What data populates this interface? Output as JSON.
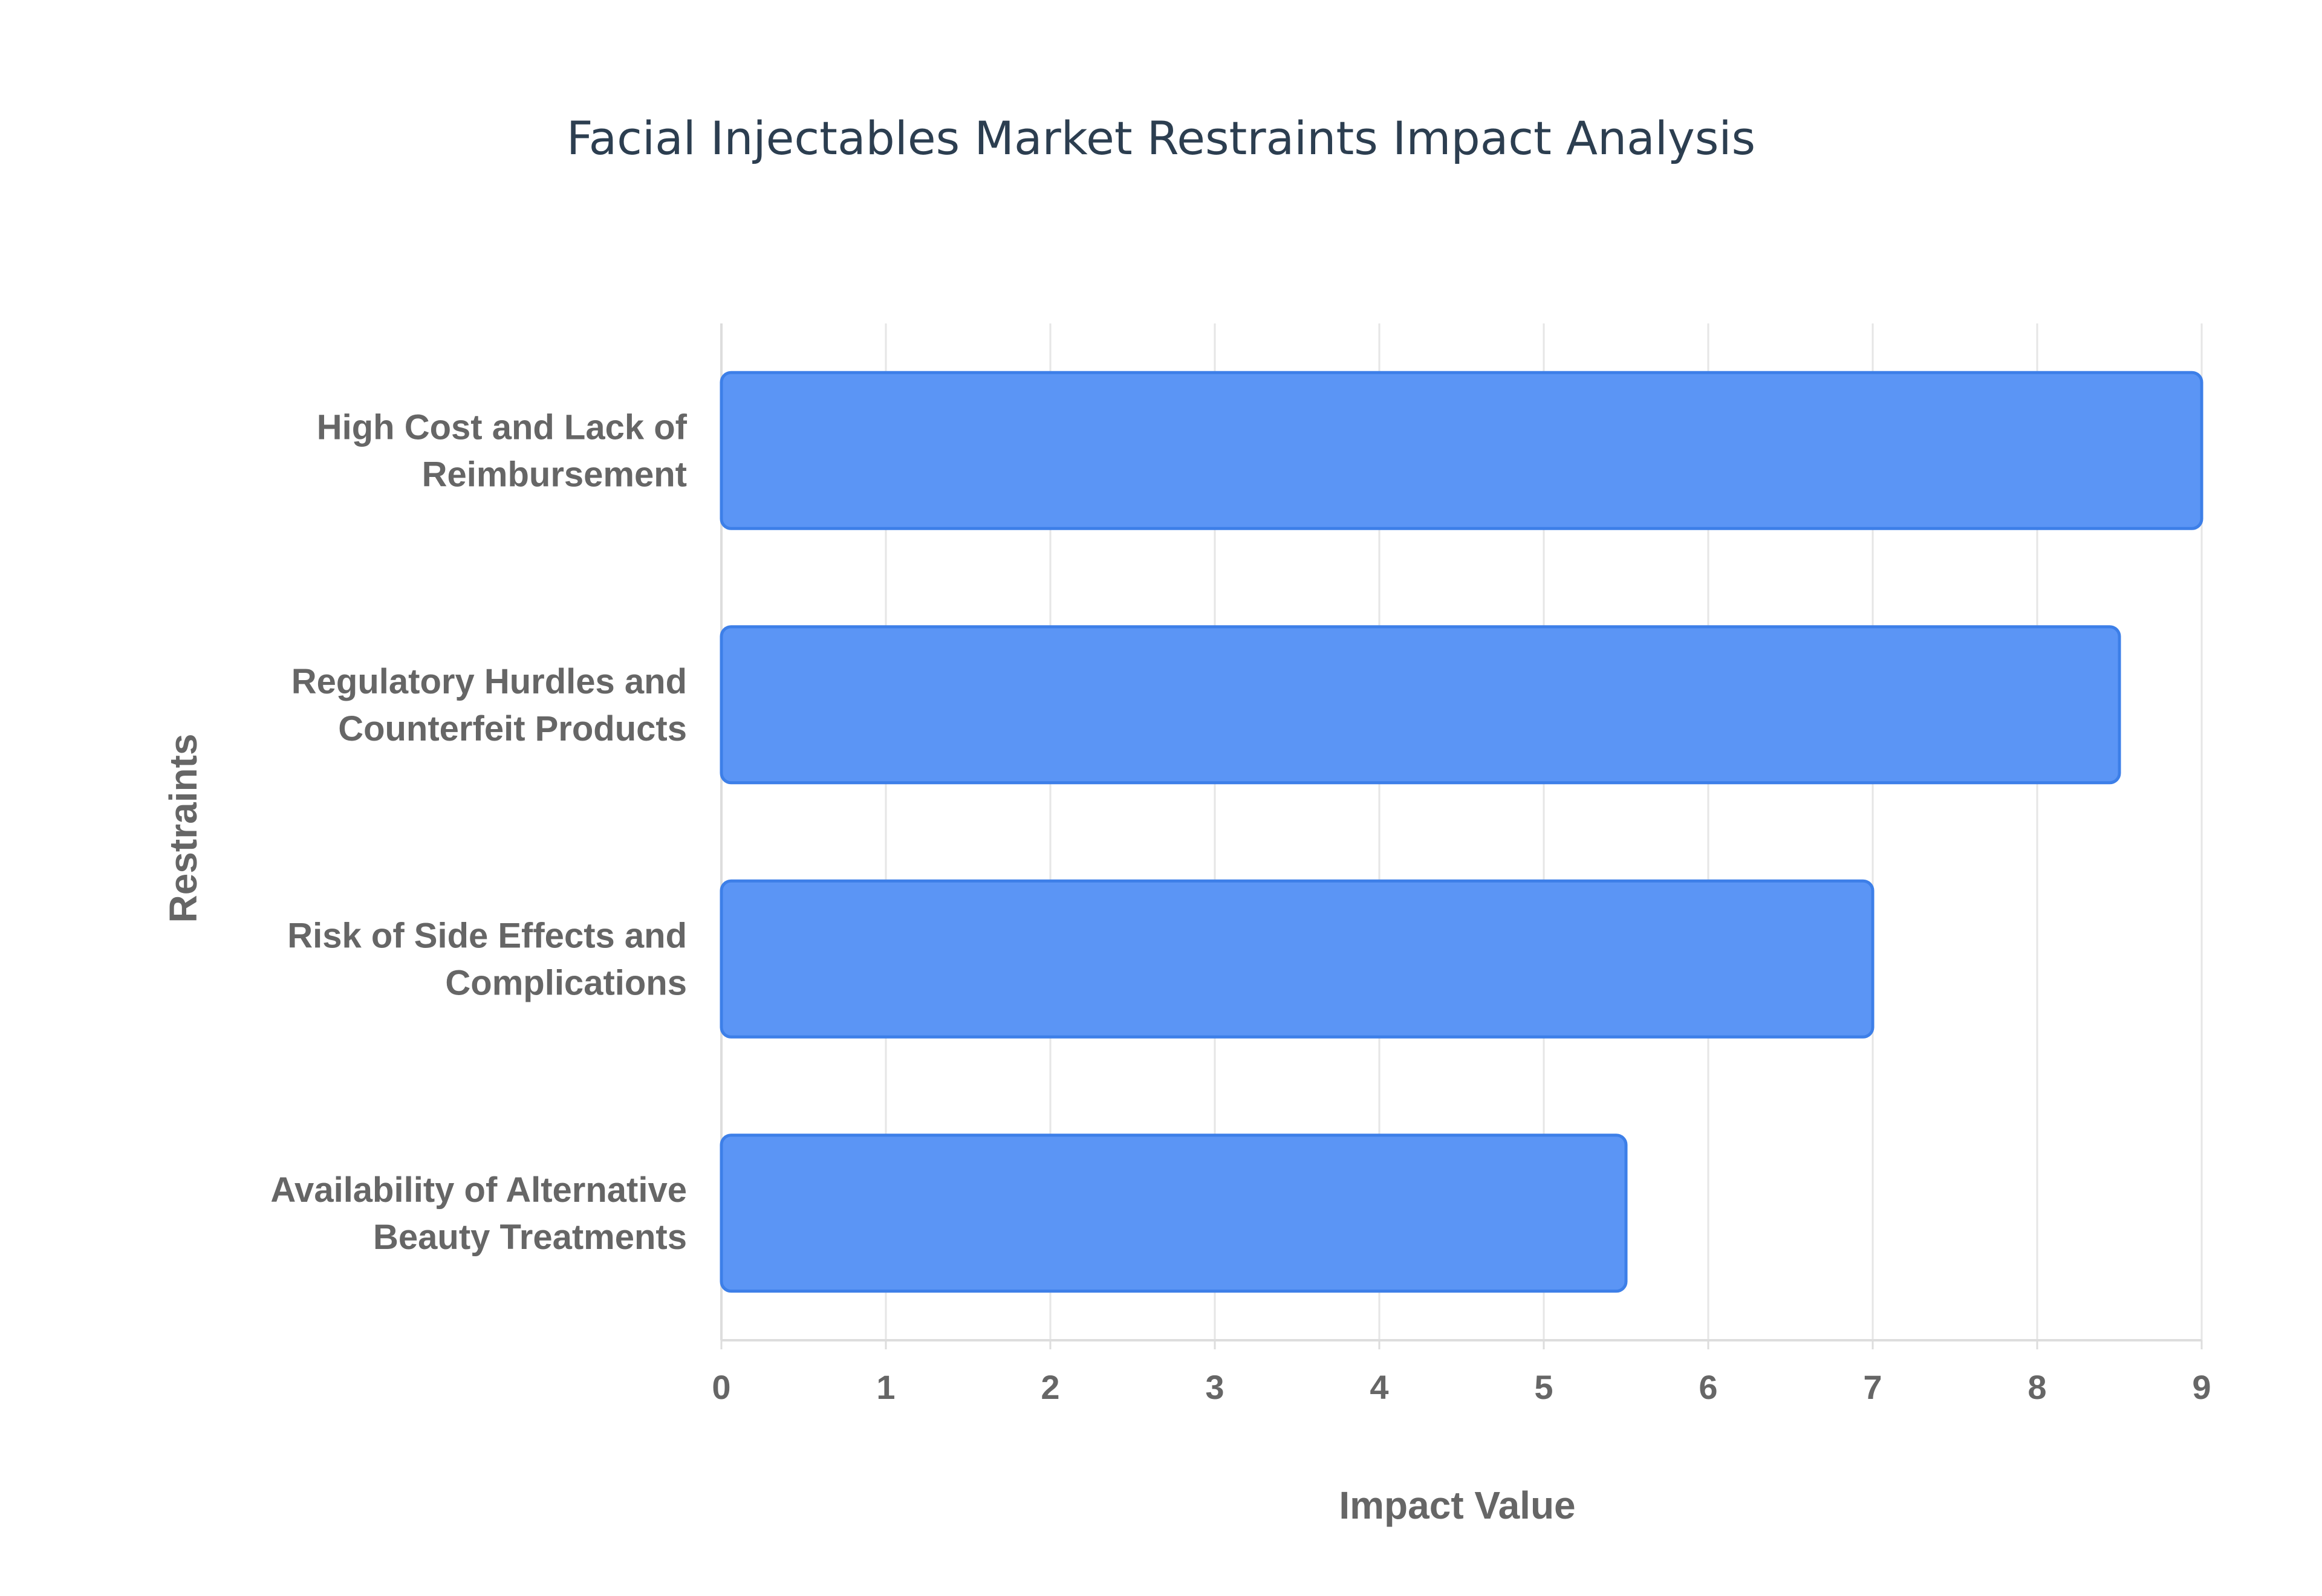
{
  "chart_data": {
    "type": "bar",
    "orientation": "horizontal",
    "title": "Facial Injectables Market Restraints Impact Analysis",
    "xlabel": "Impact Value",
    "ylabel": "Restraints",
    "xlim": [
      0,
      9
    ],
    "x_ticks": [
      "0",
      "1",
      "2",
      "3",
      "4",
      "5",
      "6",
      "7",
      "8",
      "9"
    ],
    "grid": true,
    "categories": [
      [
        "High Cost and Lack of",
        "Reimbursement"
      ],
      [
        "Regulatory Hurdles and",
        "Counterfeit Products"
      ],
      [
        "Risk of Side Effects and",
        "Complications"
      ],
      [
        "Availability of Alternative",
        "Beauty Treatments"
      ]
    ],
    "values": [
      9,
      8.5,
      7,
      5.5
    ],
    "colors": {
      "bar_fill": "#5b95f5",
      "bar_stroke": "#3d7fe8",
      "grid": "#e6e6e6",
      "axis": "#dddddd"
    }
  }
}
